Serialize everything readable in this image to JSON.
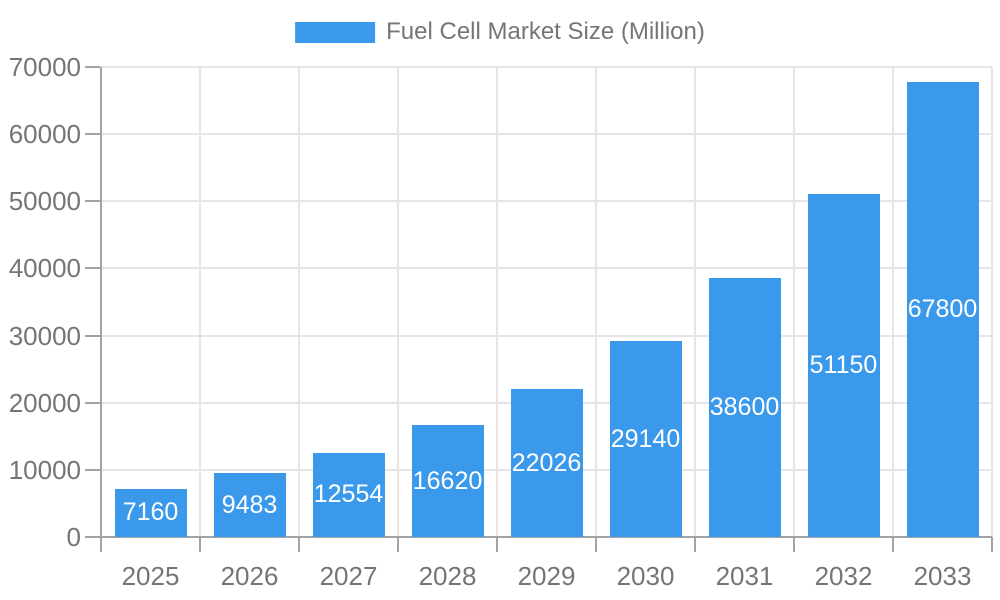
{
  "chart_data": {
    "type": "bar",
    "title": "Fuel Cell Market Size (Million)",
    "categories": [
      "2025",
      "2026",
      "2027",
      "2028",
      "2029",
      "2030",
      "2031",
      "2032",
      "2033"
    ],
    "values": [
      7160,
      9483,
      12554,
      16620,
      22026,
      29140,
      38600,
      51150,
      67800
    ],
    "xlabel": "",
    "ylabel": "",
    "ylim": [
      0,
      70000
    ],
    "ytick_step": 10000,
    "ytick_labels": [
      "0",
      "10000",
      "20000",
      "30000",
      "40000",
      "50000",
      "60000",
      "70000"
    ],
    "grid": true,
    "legend_position": "top",
    "value_labels_inside_bars": true,
    "colors": {
      "bar": "#3b99ec",
      "bar_value_text": "#ffffff",
      "axis_text": "#757575",
      "grid_line": "#e5e5e5",
      "axis_line": "#a3a3a3"
    }
  }
}
